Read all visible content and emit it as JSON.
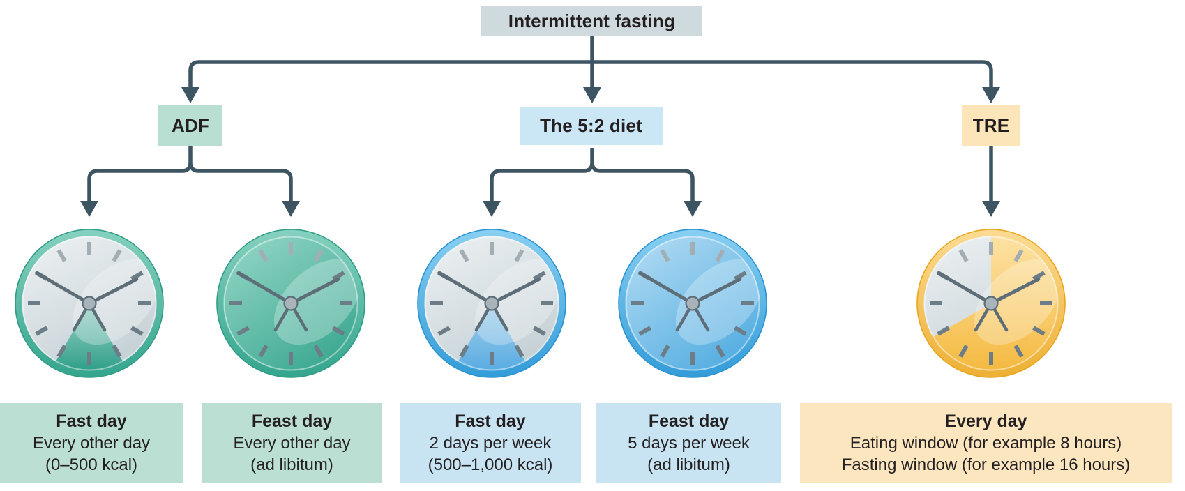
{
  "figure": {
    "root_label": "Intermittent fasting"
  },
  "branches": [
    {
      "label": "ADF"
    },
    {
      "label": "The 5:2 diet"
    },
    {
      "label": "TRE"
    }
  ],
  "clocks": [
    {
      "name": "adf-fast-day-clock",
      "scheme": "teal",
      "fill": "wedge-bottom"
    },
    {
      "name": "adf-feast-day-clock",
      "scheme": "teal",
      "fill": "full"
    },
    {
      "name": "52-fast-day-clock",
      "scheme": "blue",
      "fill": "wedge-bottom"
    },
    {
      "name": "52-feast-day-clock",
      "scheme": "blue",
      "fill": "full"
    },
    {
      "name": "tre-every-day-clock",
      "scheme": "yellow",
      "fill": "wedge-8h"
    }
  ],
  "cards": [
    {
      "title": "Fast day",
      "lines": [
        "Every other day",
        "(0–500 kcal)"
      ]
    },
    {
      "title": "Feast day",
      "lines": [
        "Every other day",
        "(ad libitum)"
      ]
    },
    {
      "title": "Fast day",
      "lines": [
        "2 days per week",
        "(500–1,000 kcal)"
      ]
    },
    {
      "title": "Feast day",
      "lines": [
        "5 days per week",
        "(ad libitum)"
      ]
    },
    {
      "title": "Every day",
      "lines": [
        "Eating window (for example 8 hours)",
        "Fasting window (for example 16 hours)"
      ]
    }
  ],
  "palette": {
    "arrow": "#3d5463",
    "text": "#231f20",
    "root_box": "#cfdade",
    "adf_box": "#b9ded2",
    "diet52_box": "#cbe6f5",
    "tre_box": "#fce5b8",
    "card_green": "#bcdfd4",
    "card_blue": "#c8e3f2",
    "card_yellow": "#fbe6bf",
    "clock_teal": "#3ea992",
    "clock_blue": "#55aee1",
    "clock_yellow": "#f5bc45"
  }
}
